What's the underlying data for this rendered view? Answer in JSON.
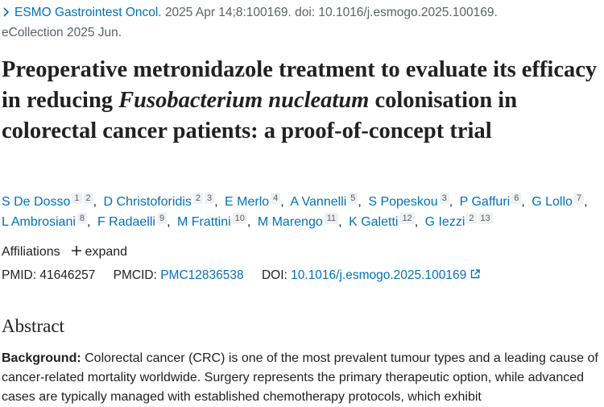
{
  "citation": {
    "journal": "ESMO Gastrointest Oncol.",
    "details": "2025 Apr 14;8:100169. doi: 10.1016/j.esmogo.2025.100169.",
    "ecollection": "eCollection 2025 Jun."
  },
  "title": {
    "before": "Preoperative metronidazole treatment to evaluate its efficacy in reducing",
    "italic": "Fusobacterium nucleatum",
    "after": "colonisation in colorectal cancer patients: a proof-of-concept trial"
  },
  "authors": [
    {
      "name": "S De Dosso",
      "affiliations": [
        1,
        2
      ]
    },
    {
      "name": "D Christoforidis",
      "affiliations": [
        2,
        3
      ]
    },
    {
      "name": "E Merlo",
      "affiliations": [
        4
      ]
    },
    {
      "name": "A Vannelli",
      "affiliations": [
        5
      ]
    },
    {
      "name": "S Popeskou",
      "affiliations": [
        3
      ]
    },
    {
      "name": "P Gaffuri",
      "affiliations": [
        6
      ]
    },
    {
      "name": "G Lollo",
      "affiliations": [
        7
      ]
    },
    {
      "name": "L Ambrosiani",
      "affiliations": [
        8
      ]
    },
    {
      "name": "F Radaelli",
      "affiliations": [
        9
      ]
    },
    {
      "name": "M Frattini",
      "affiliations": [
        10
      ]
    },
    {
      "name": "M Marengo",
      "affiliations": [
        11
      ]
    },
    {
      "name": "K Galetti",
      "affiliations": [
        12
      ]
    },
    {
      "name": "G Iezzi",
      "affiliations": [
        2,
        13
      ]
    }
  ],
  "affiliations": {
    "label": "Affiliations",
    "toggle": "expand"
  },
  "identifiers": {
    "pmid_label": "PMID:",
    "pmid": "41646257",
    "pmcid_label": "PMCID:",
    "pmcid": "PMC12836538",
    "doi_label": "DOI:",
    "doi": "10.1016/j.esmogo.2025.100169"
  },
  "abstract": {
    "heading": "Abstract",
    "background_label": "Background:",
    "background": "Colorectal cancer (CRC) is one of the most prevalent tumour types and a leading cause of cancer-related mortality worldwide. Surgery represents the primary therapeutic option, while advanced cases are typically managed with established chemotherapy protocols, which exhibit"
  }
}
